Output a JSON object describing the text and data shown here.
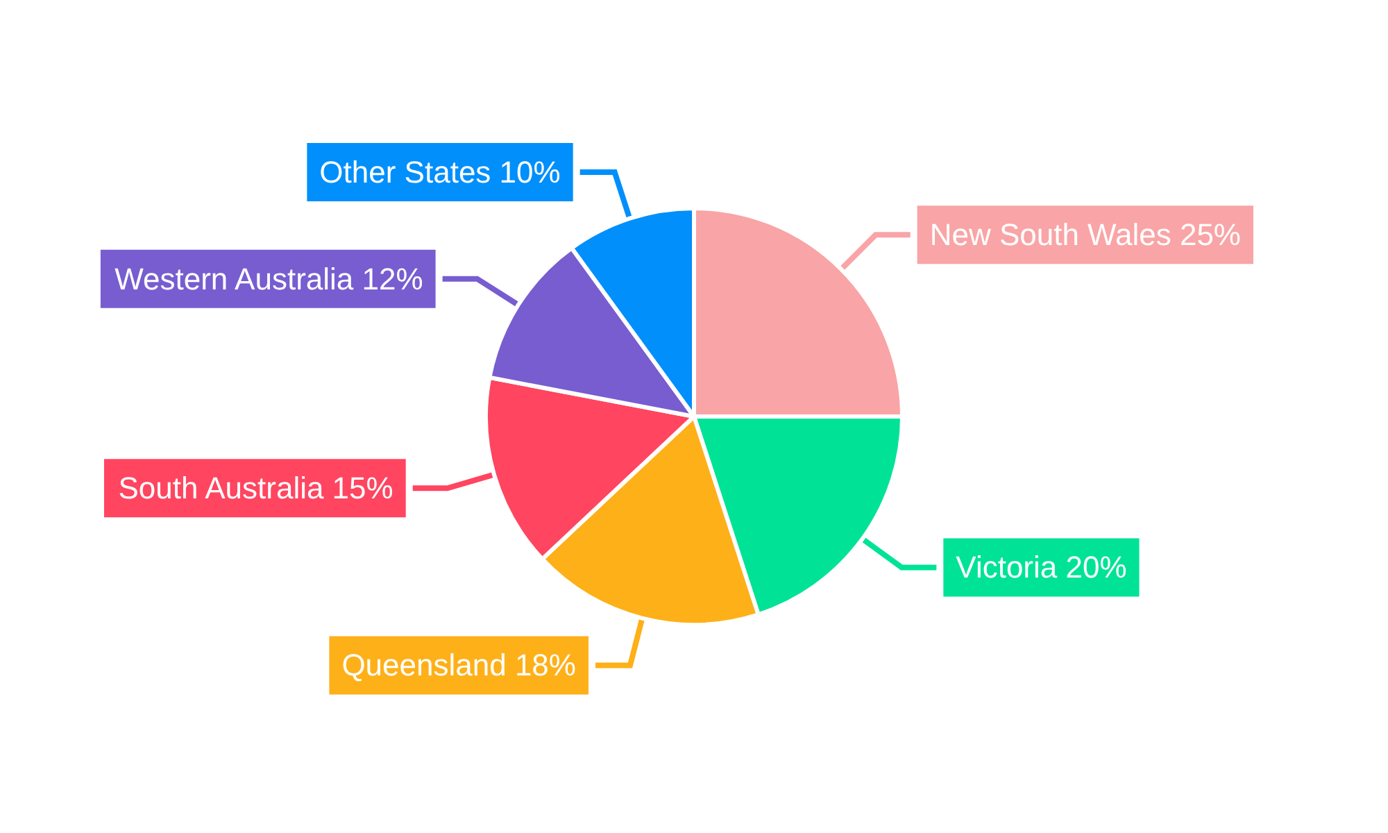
{
  "chart_data": {
    "type": "pie",
    "categories": [
      "New South Wales",
      "Victoria",
      "Queensland",
      "South Australia",
      "Western Australia",
      "Other States"
    ],
    "values": [
      25,
      20,
      18,
      15,
      12,
      10
    ],
    "value_labels": [
      "25%",
      "20%",
      "18%",
      "15%",
      "12%",
      "10%"
    ],
    "colors": [
      "#f9a4a6",
      "#00e396",
      "#feb019",
      "#ff4560",
      "#775dd0",
      "#008ffb"
    ]
  }
}
